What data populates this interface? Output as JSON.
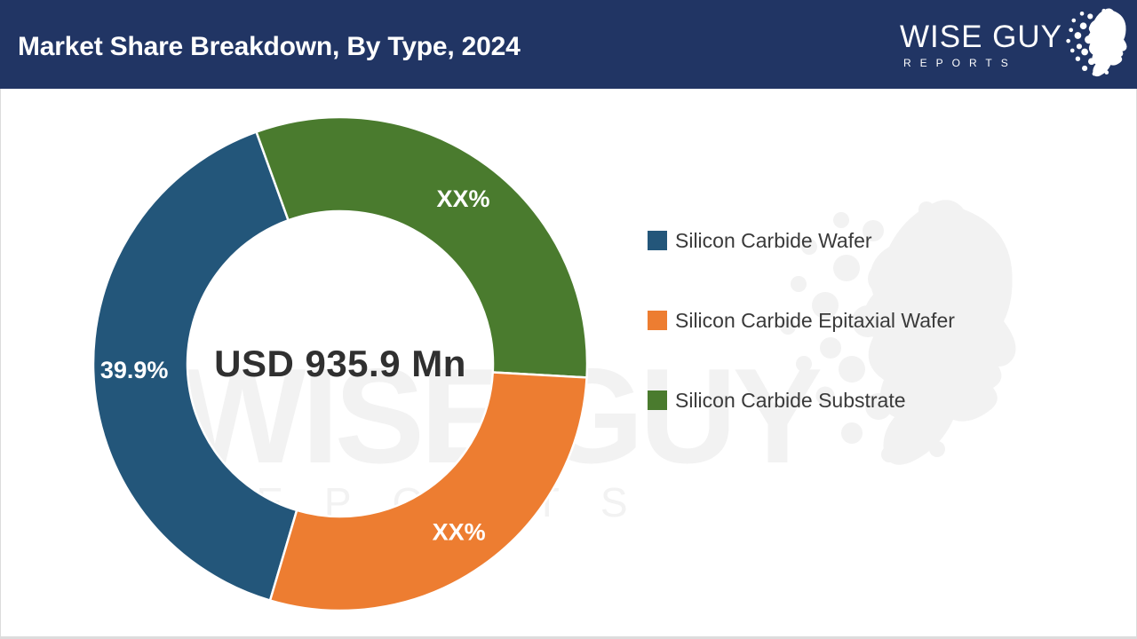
{
  "header": {
    "title": "Market Share Breakdown, By Type, 2024",
    "bg_color": "#213564",
    "logo": {
      "line1": "WISE GUY",
      "line2": "REPORTS"
    }
  },
  "chart_data": {
    "type": "pie",
    "donut": true,
    "title": "Market Share Breakdown, By Type, 2024",
    "center_label": "USD 935.9 Mn",
    "start_angle_deg_cw_from_top": 196.5,
    "legend_position": "right",
    "segments": [
      {
        "name": "Silicon Carbide Wafer",
        "label": "39.9%",
        "value_pct": 39.9,
        "color": "#23567a"
      },
      {
        "name": "Silicon Carbide Substrate",
        "label": "XX%",
        "value_pct": 31.4,
        "color": "#4a7b2e"
      },
      {
        "name": "Silicon Carbide Epitaxial Wafer",
        "label": "XX%",
        "value_pct": 28.7,
        "color": "#ed7d31"
      }
    ]
  },
  "legend": {
    "items": [
      {
        "label": "Silicon Carbide Wafer",
        "color": "#23567a"
      },
      {
        "label": "Silicon Carbide Epitaxial Wafer",
        "color": "#ed7d31"
      },
      {
        "label": "Silicon Carbide Substrate",
        "color": "#4a7b2e"
      }
    ]
  },
  "watermark": {
    "line1": "WISE GUY",
    "line2": "REPORTS"
  }
}
